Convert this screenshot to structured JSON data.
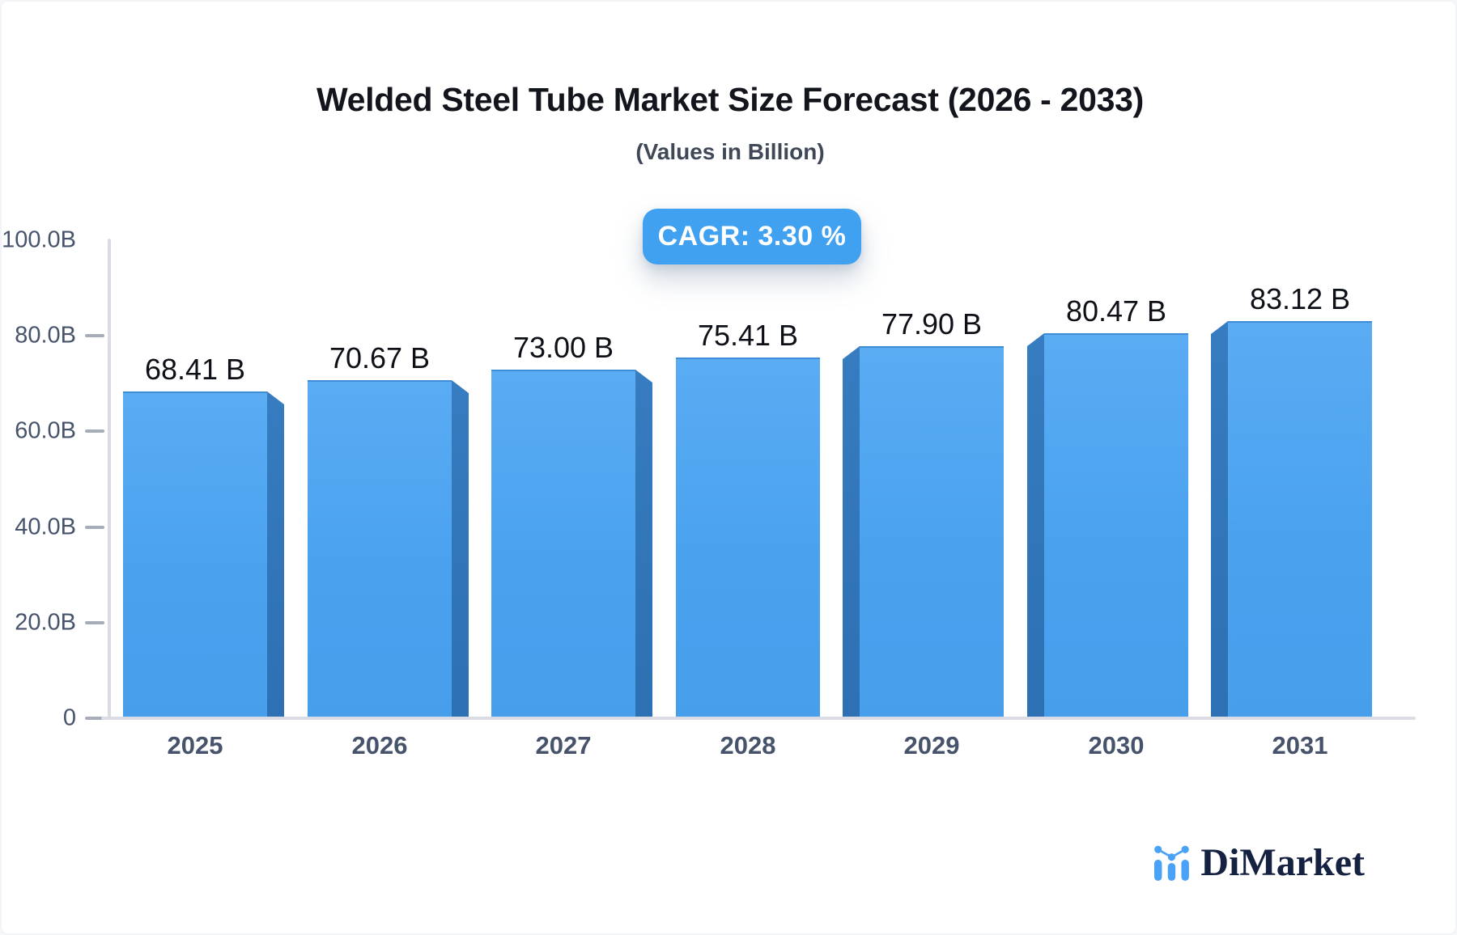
{
  "header": {
    "title": "Welded Steel Tube Market Size Forecast (2026 - 2033)",
    "subtitle": "(Values in Billion)",
    "cagr_badge": "CAGR: 3.30 %"
  },
  "chart_data": {
    "type": "bar",
    "title": "Welded Steel Tube Market Size Forecast (2026 - 2033)",
    "subtitle": "(Values in Billion)",
    "cagr": "3.30 %",
    "categories": [
      "2025",
      "2026",
      "2027",
      "2028",
      "2029",
      "2030",
      "2031"
    ],
    "values": [
      68.41,
      70.67,
      73.0,
      75.41,
      77.9,
      80.47,
      83.12
    ],
    "value_labels": [
      "68.41 B",
      "70.67 B",
      "73.00 B",
      "75.41 B",
      "77.90 B",
      "80.47 B",
      "83.12 B"
    ],
    "y_axis": {
      "ticks": [
        {
          "label": "100.0B",
          "value": 100,
          "show_tick_mark": false
        },
        {
          "label": "80.0B",
          "value": 80,
          "show_tick_mark": true
        },
        {
          "label": "60.0B",
          "value": 60,
          "show_tick_mark": true
        },
        {
          "label": "40.0B",
          "value": 40,
          "show_tick_mark": true
        },
        {
          "label": "20.0B",
          "value": 20,
          "show_tick_mark": true
        },
        {
          "label": "0",
          "value": 0,
          "show_tick_mark": true
        }
      ]
    },
    "ylim": [
      0,
      100
    ],
    "grid": false,
    "legend": false,
    "colors": {
      "bar_face": "#4FA6F1",
      "bar_side": "#2E73B7",
      "badge": "#41A1F1",
      "axis_line": "#D9DCE2",
      "axis_text": "#46536B",
      "brand_navy": "#142140",
      "brand_blue": "#4AA2F6"
    }
  },
  "footer": {
    "brand": "DiMarket",
    "logo_icon": "bar-line-chart-icon"
  }
}
